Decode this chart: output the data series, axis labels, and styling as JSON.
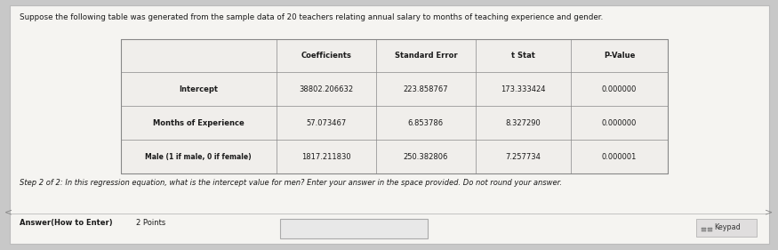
{
  "title": "Suppose the following table was generated from the sample data of 20 teachers relating annual salary to months of teaching experience and gender.",
  "step_text": "Step 2 of 2: In this regression equation, what is the intercept value for men? Enter your answer in the space provided. Do not round your answer.",
  "answer_label": "Answer(How to Enter)",
  "answer_points": "2 Points",
  "keypad_label": "Keypad",
  "col_headers": [
    "",
    "Coefficients",
    "Standard Error",
    "t Stat",
    "P-Value"
  ],
  "rows": [
    [
      "Intercept",
      "38802.206632",
      "223.858767",
      "173.333424",
      "0.000000"
    ],
    [
      "Months of Experience",
      "57.073467",
      "6.853786",
      "8.327290",
      "0.000000"
    ],
    [
      "Male (1 if male, 0 if female)",
      "1817.211830",
      "250.382806",
      "7.257734",
      "0.000001"
    ]
  ],
  "table_bg": "#f0eeeb",
  "table_border": "#888888",
  "header_text_color": "#1a1a1a",
  "cell_text_color": "#1a1a1a",
  "title_color": "#1a1a1a",
  "step_color": "#1a1a1a",
  "answer_color": "#1a1a1a",
  "outer_bg": "#c8c8c8",
  "card_bg": "#f5f4f1",
  "input_box_color": "#e8e8e8",
  "keypad_bg": "#e0dede",
  "nav_color": "#888888"
}
